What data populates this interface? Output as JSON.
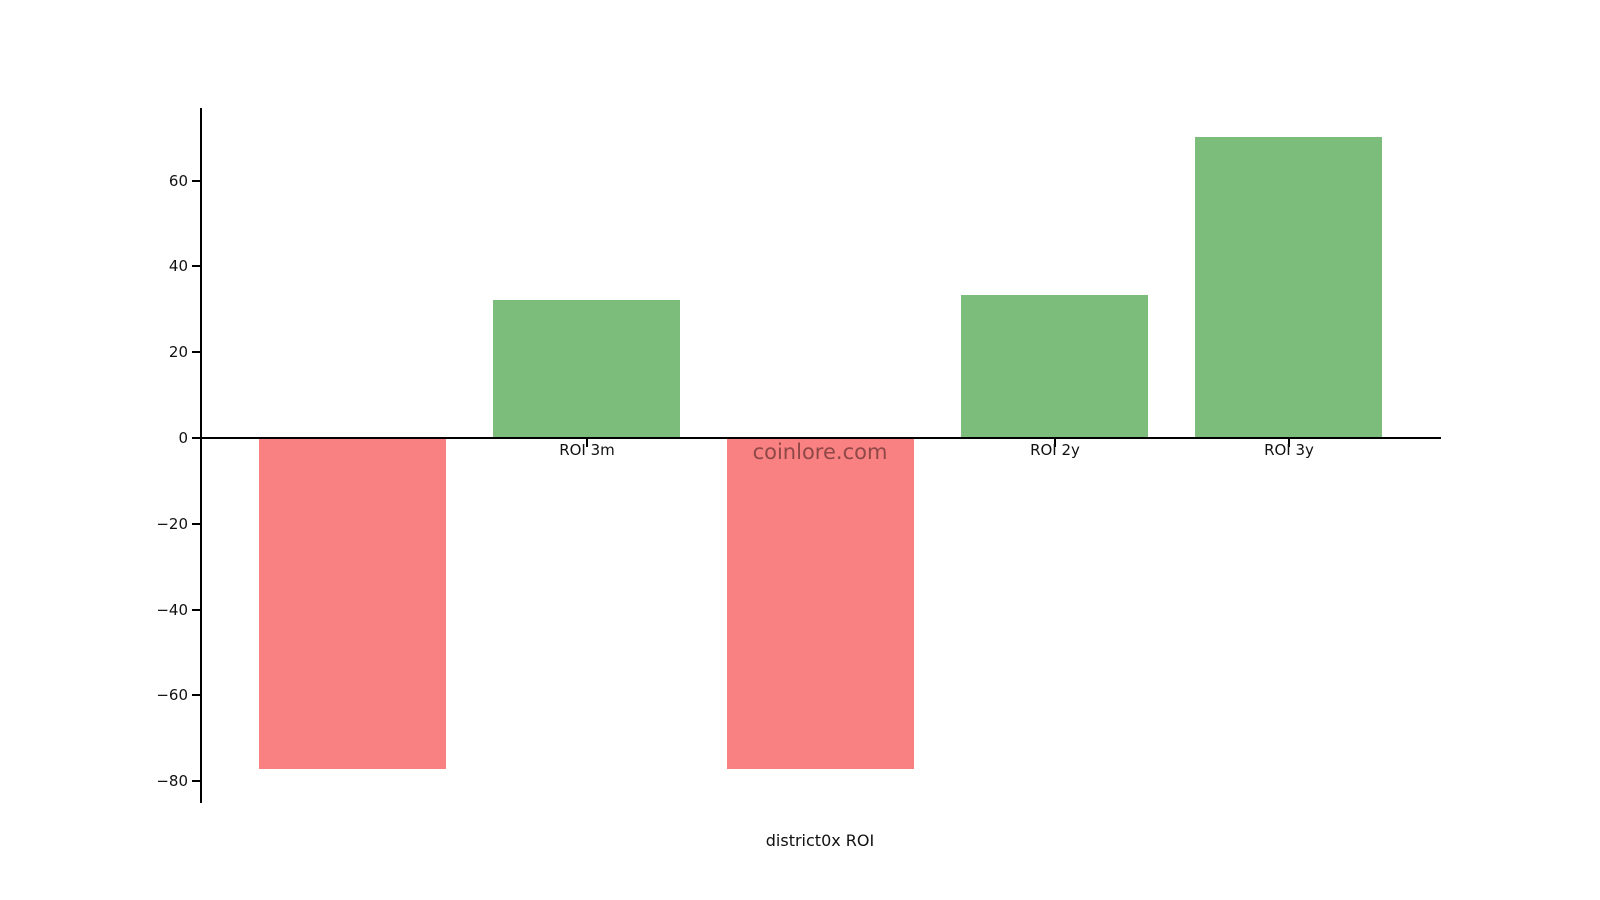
{
  "figure": {
    "background_color": "#ffffff",
    "watermark": "coinlore.com",
    "watermark_color": "#8f4848",
    "axis_color": "#000000",
    "tick_label_color": "#111111"
  },
  "chart_data": {
    "type": "bar",
    "title": "",
    "xlabel": "district0x ROI",
    "ylabel": "",
    "categories": [
      "",
      "ROI 3m",
      "",
      "ROI 2y",
      "ROI 3y"
    ],
    "values": [
      -77,
      32,
      -77,
      33,
      70
    ],
    "bar_colors": [
      "#fa8181",
      "#7cbd7c",
      "#fa8181",
      "#7cbd7c",
      "#7cbd7c"
    ],
    "positive_color": "#7cbd7c",
    "negative_color": "#fa8181",
    "ylim": [
      -85,
      77
    ],
    "yticks": [
      -80,
      -60,
      -40,
      -20,
      0,
      20,
      40,
      60
    ],
    "ytick_labels": [
      "−80",
      "−60",
      "−40",
      "−20",
      "0",
      "20",
      "40",
      "60"
    ],
    "grid": false,
    "legend": "none",
    "notes": "labels of the two negative bars are hidden behind the bars themselves"
  }
}
